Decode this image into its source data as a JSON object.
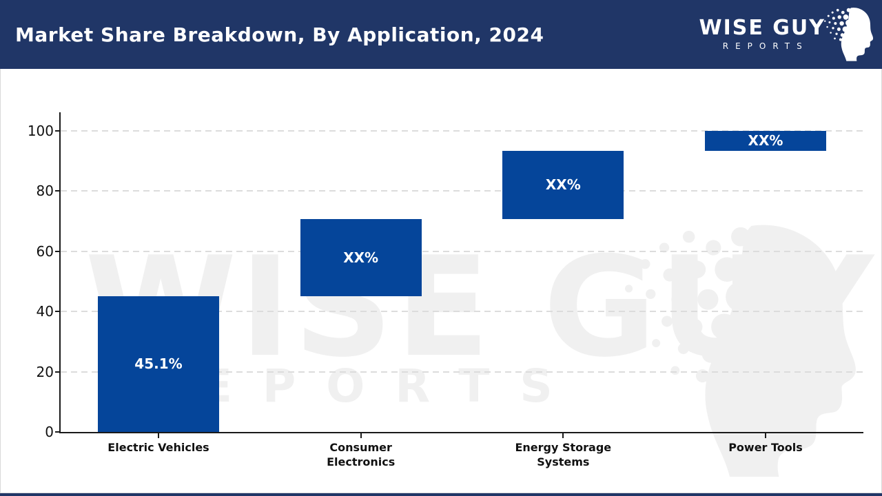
{
  "header": {
    "title": "Market Share Breakdown, By Application, 2024",
    "logo": {
      "line1": "WISE GUY",
      "line2": "REPORTS"
    }
  },
  "watermark": {
    "line1": "WISE GUY",
    "line2": "REPORTS"
  },
  "colors": {
    "navy": "#203667",
    "bar": "#05459a",
    "watermark": "#f0f0f0",
    "grid": "#dcdcdc",
    "axis": "#1a1a1a",
    "bar_label": "#ffffff"
  },
  "chart_data": {
    "type": "bar",
    "subtype": "waterfall",
    "title": "Market Share Breakdown, By Application, 2024",
    "categories": [
      "Electric Vehicles",
      "Consumer Electronics",
      "Energy Storage Systems",
      "Power Tools"
    ],
    "segments": [
      {
        "category": "Electric Vehicles",
        "start": 0,
        "end": 45.1,
        "label": "45.1%"
      },
      {
        "category": "Consumer Electronics",
        "start": 45.1,
        "end": 70.7,
        "label": "XX%"
      },
      {
        "category": "Energy Storage Systems",
        "start": 70.7,
        "end": 93.3,
        "label": "XX%"
      },
      {
        "category": "Power Tools",
        "start": 93.3,
        "end": 100,
        "label": "XX%"
      }
    ],
    "yticks": [
      0,
      20,
      40,
      60,
      80,
      100
    ],
    "ylim": [
      0,
      106
    ],
    "xlabel": "",
    "ylabel": "",
    "grid": "dashed-horizontal",
    "legend": "none"
  }
}
